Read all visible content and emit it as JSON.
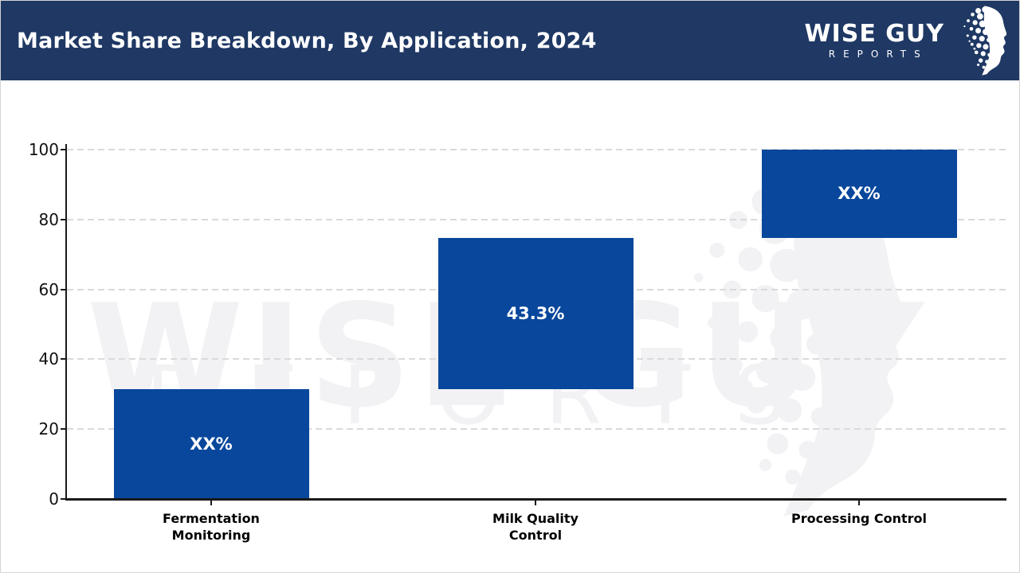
{
  "header": {
    "title": "Market Share Breakdown, By Application, 2024",
    "logo": {
      "line1": "WISE GUY",
      "line2": "REPORTS"
    }
  },
  "watermark": {
    "line1": "WISE GUY",
    "line2": "REPORTS"
  },
  "chart_data": {
    "type": "bar",
    "subtype": "floating-stacked-percentage",
    "title": "Market Share Breakdown, By Application, 2024",
    "categories": [
      "Fermentation Monitoring",
      "Milk Quality Control",
      "Processing Control"
    ],
    "category_lines": [
      [
        "Fermentation",
        "Monitoring"
      ],
      [
        "Milk Quality",
        "Control"
      ],
      [
        "Processing Control"
      ]
    ],
    "series": [
      {
        "name": "Fermentation Monitoring",
        "start": 0,
        "end": 31.5,
        "label": "XX%"
      },
      {
        "name": "Milk Quality Control",
        "start": 31.5,
        "end": 74.8,
        "label": "43.3%"
      },
      {
        "name": "Processing Control",
        "start": 74.8,
        "end": 100,
        "label": "XX%"
      }
    ],
    "yticks": [
      0,
      20,
      40,
      60,
      80,
      100
    ],
    "ylim": [
      0,
      100
    ],
    "xlabel": "",
    "ylabel": "",
    "grid": "horizontal-dashed",
    "legend": "none",
    "bar_color": "#08479c",
    "bar_label_color": "#ffffff"
  },
  "colors": {
    "header_bg": "#1f3864",
    "bar": "#08479c",
    "watermark": "#f2f2f4",
    "gridline": "#dadada",
    "axis": "#1a1a1a",
    "tick_text": "#111111",
    "page_border": "#d5d5d5"
  }
}
